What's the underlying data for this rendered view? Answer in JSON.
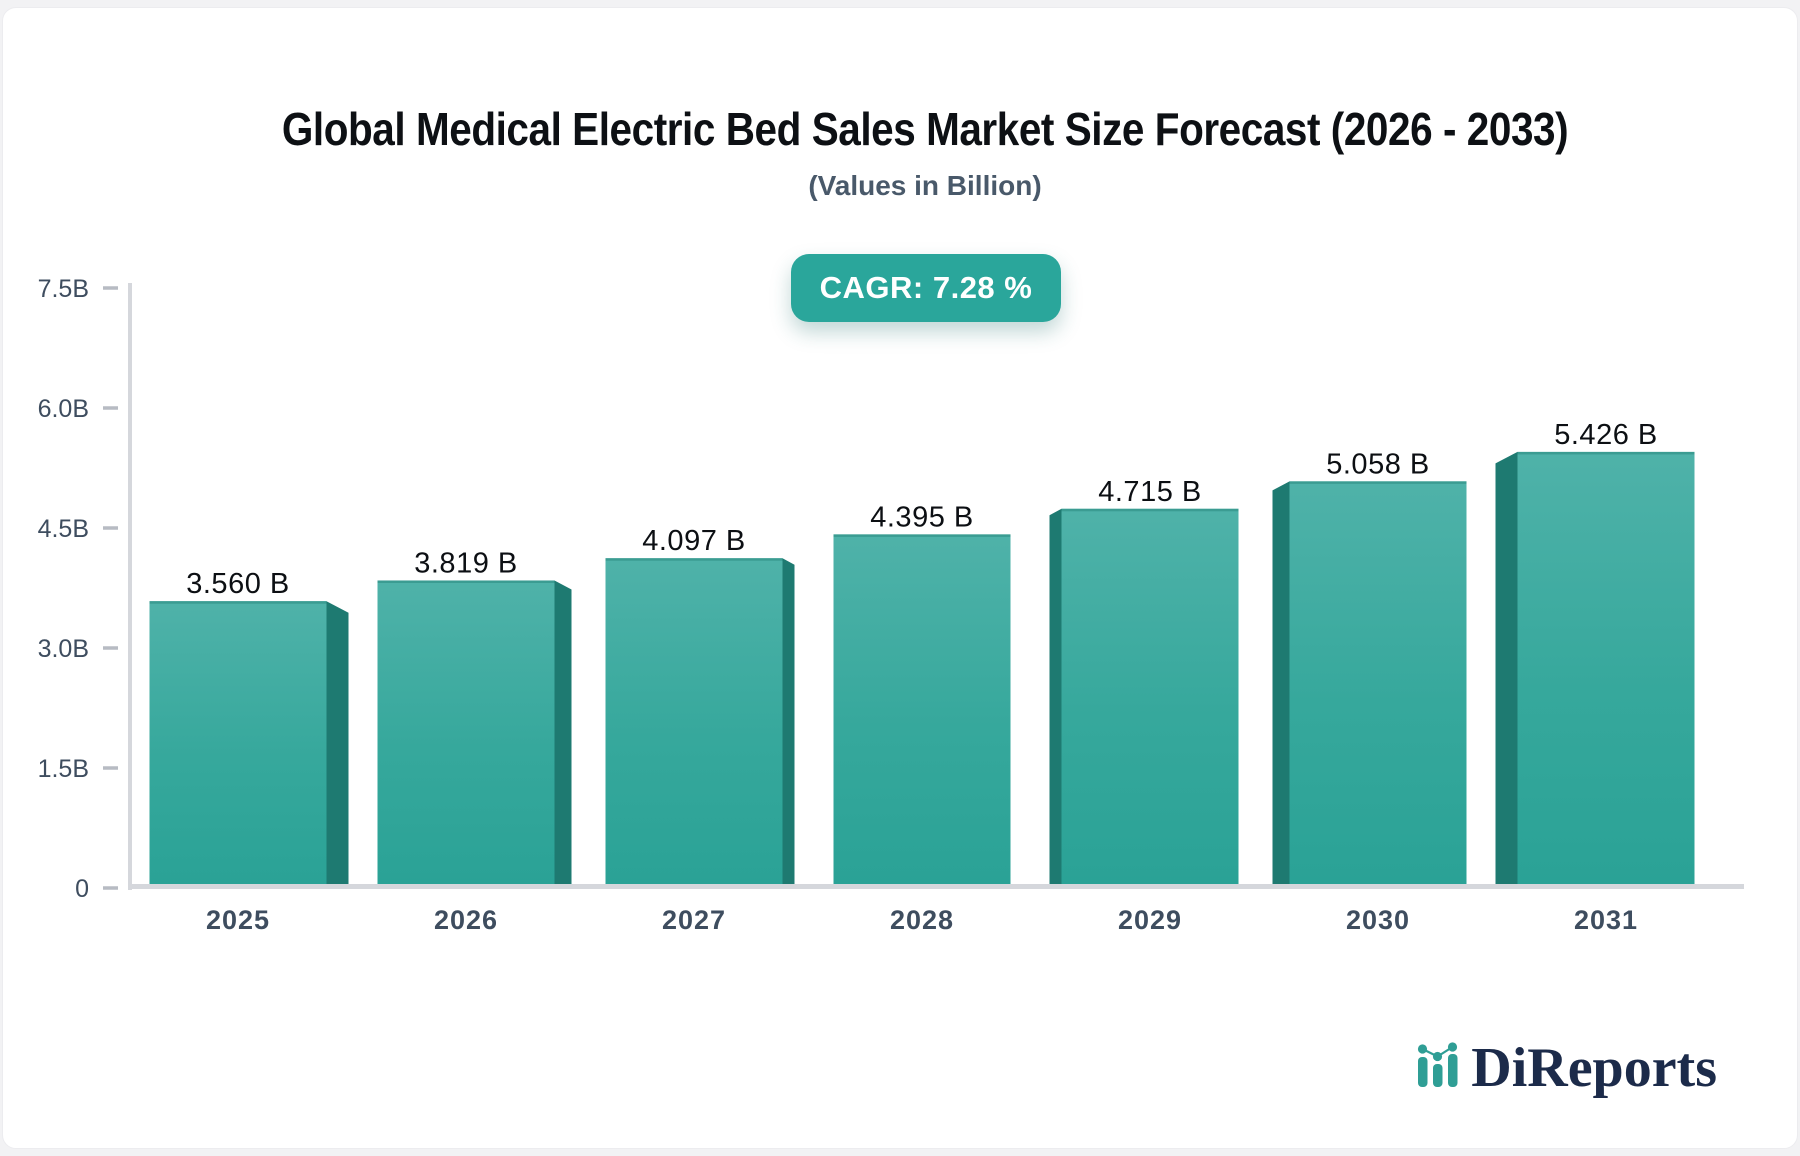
{
  "header": {
    "title": "Global Medical Electric Bed Sales Market Size Forecast (2026 - 2033)",
    "subtitle": "(Values in Billion)",
    "cagr_label": "CAGR: 7.28 %"
  },
  "chart_data": {
    "type": "bar",
    "title": "Global Medical Electric Bed Sales Market Size Forecast (2026 - 2033)",
    "subtitle": "(Values in Billion)",
    "cagr_percent": 7.28,
    "categories": [
      "2025",
      "2026",
      "2027",
      "2028",
      "2029",
      "2030",
      "2031"
    ],
    "values": [
      3.56,
      3.819,
      4.097,
      4.395,
      4.715,
      5.058,
      5.426
    ],
    "value_labels": [
      "3.560 B",
      "3.819 B",
      "4.097 B",
      "4.395 B",
      "4.715 B",
      "5.058 B",
      "5.426 B"
    ],
    "unit": "Billion",
    "ylim": [
      0,
      7.5
    ],
    "y_tick_values": [
      0,
      1.5,
      3.0,
      4.5,
      6.0,
      7.5
    ],
    "y_tick_labels": [
      "0",
      "1.5B",
      "3.0B",
      "4.5B",
      "6.0B",
      "7.5B"
    ],
    "grid": false,
    "legend": false,
    "style": "3d-perspective-bars",
    "colors": {
      "bar_face_top": "#4fb2a9",
      "bar_face_mid": "#36a89c",
      "bar_face_bottom": "#2aa296",
      "bar_top_edge": "#3b9c92",
      "bar_side": "#1e7a71",
      "axis_line": "#d5d7dc",
      "tick_dash": "#b7bbc3",
      "axis_label": "#3e4d5f",
      "value_label": "#0c0f13",
      "badge_bg": "#2aa69b",
      "badge_text": "#ffffff"
    }
  },
  "branding": {
    "name": "DiReports",
    "icon": "mini-bar-chart-logo",
    "icon_color": "#2f9e95",
    "text_color": "#1c2b4a"
  }
}
